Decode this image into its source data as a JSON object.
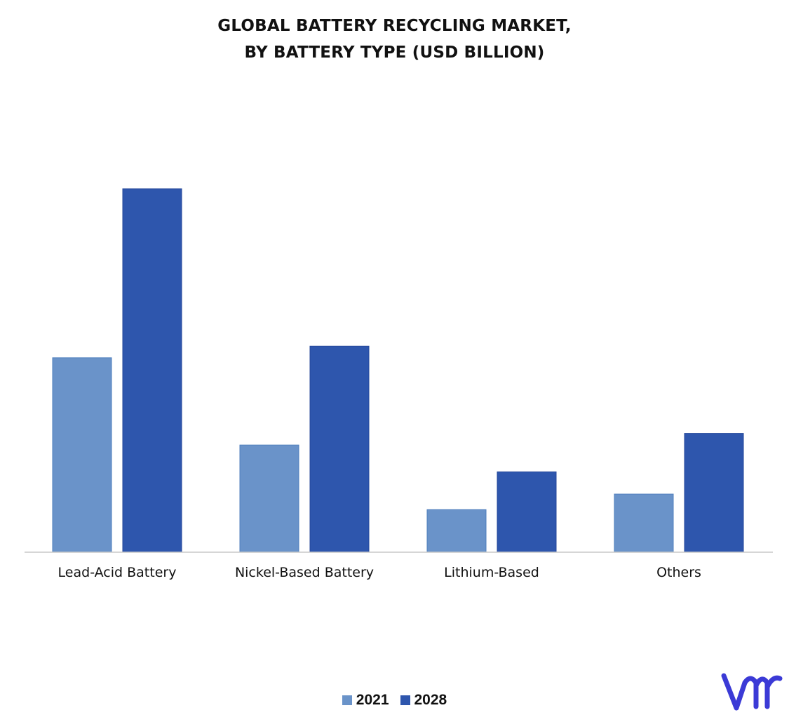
{
  "chart_data": {
    "type": "bar",
    "title": "GLOBAL BATTERY RECYCLING MARKET,",
    "subtitle": "BY BATTERY TYPE (USD BILLION)",
    "xlabel": "",
    "ylabel": "",
    "categories": [
      "Lead-Acid Battery",
      "Nickel-Based Battery",
      "Lithium-Based",
      "Others"
    ],
    "series": [
      {
        "name": "2021",
        "values": [
          5.35,
          2.95,
          1.17,
          1.6
        ],
        "color": "#6a93c9"
      },
      {
        "name": "2028",
        "values": [
          10.0,
          5.67,
          2.21,
          3.27
        ],
        "color": "#2e56ad"
      }
    ],
    "ylim": [
      0,
      10
    ],
    "grid": false,
    "legend_position": "bottom"
  },
  "logo": {
    "icon": "vmr-logo-icon",
    "color": "#3b3ad6"
  }
}
